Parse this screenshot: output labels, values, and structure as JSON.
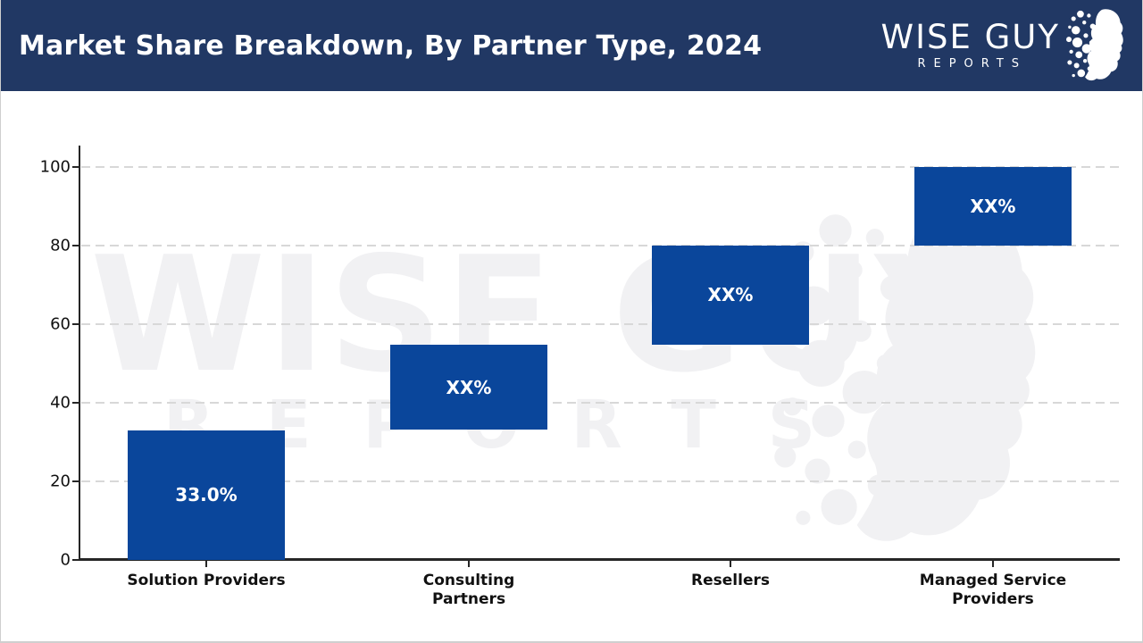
{
  "header": {
    "title": "Market Share Breakdown, By Partner Type, 2024",
    "logo": {
      "name": "WISE GUY",
      "subtitle": "REPORTS"
    }
  },
  "watermark": {
    "line1": "WISE GUY",
    "line2": "REPORTS"
  },
  "chart_data": {
    "type": "bar",
    "subtype": "waterfall",
    "title": "Market Share Breakdown, By Partner Type, 2024",
    "categories": [
      "Solution Providers",
      "Consulting Partners",
      "Resellers",
      "Managed Service Providers"
    ],
    "category_wrap": [
      [
        "Solution Providers"
      ],
      [
        "Consulting",
        "Partners"
      ],
      [
        "Resellers"
      ],
      [
        "Managed Service",
        "Providers"
      ]
    ],
    "segments": [
      {
        "category": "Solution Providers",
        "start": 0,
        "end": 33,
        "label": "33.0%"
      },
      {
        "category": "Consulting Partners",
        "start": 33,
        "end": 54.8,
        "label": "XX%"
      },
      {
        "category": "Resellers",
        "start": 54.8,
        "end": 80,
        "label": "XX%"
      },
      {
        "category": "Managed Service Providers",
        "start": 80,
        "end": 100,
        "label": "XX%"
      }
    ],
    "yticks": [
      0,
      20,
      40,
      60,
      80,
      100
    ],
    "ylim": [
      0,
      105
    ],
    "grid": "horizontal-dashed",
    "legend": "none",
    "bar_color": "#0a469b"
  },
  "colors": {
    "header_bg": "#213864",
    "bar": "#0a469b",
    "watermark": "#f1f1f3",
    "gridline": "#d8d8d8",
    "axis": "#262626",
    "tick_text": "#111111"
  }
}
